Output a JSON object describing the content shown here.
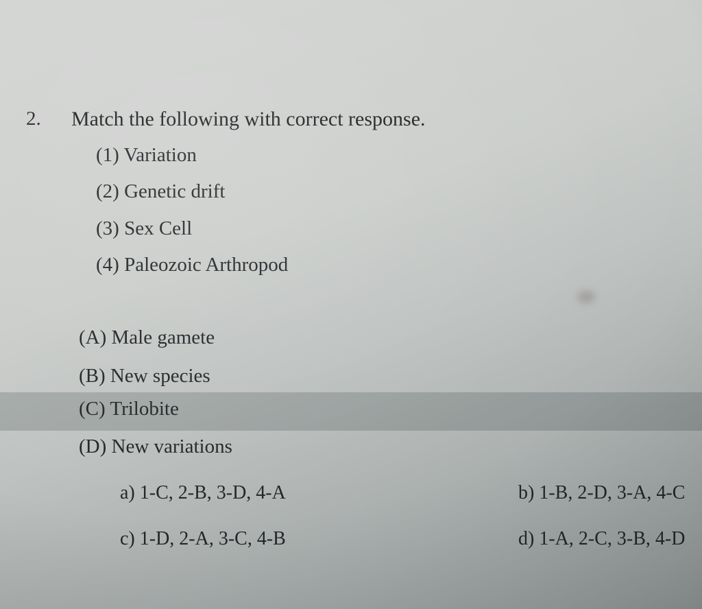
{
  "question": {
    "number": "2.",
    "stem": "Match the following with correct response.",
    "column1": [
      "(1) Variation",
      "(2) Genetic drift",
      "(3) Sex Cell",
      "(4) Paleozoic Arthropod"
    ],
    "column2": [
      "(A) Male gamete",
      "(B) New species",
      "(C) Trilobite",
      "(D) New variations"
    ],
    "options": {
      "a": "a) 1-C, 2-B, 3-D, 4-A",
      "b": "b) 1-B, 2-D, 3-A, 4-C",
      "c": "c) 1-D, 2-A, 3-C, 4-B",
      "d": "d) 1-A, 2-C, 3-B, 4-D"
    }
  },
  "style": {
    "text_color": "#1d1f1e",
    "background_gradient": [
      "#d2d4d2",
      "#949a9b"
    ],
    "band_color": "rgba(140,150,150,0.35)",
    "font_family": "Times New Roman",
    "base_font_size_pt": 22
  }
}
